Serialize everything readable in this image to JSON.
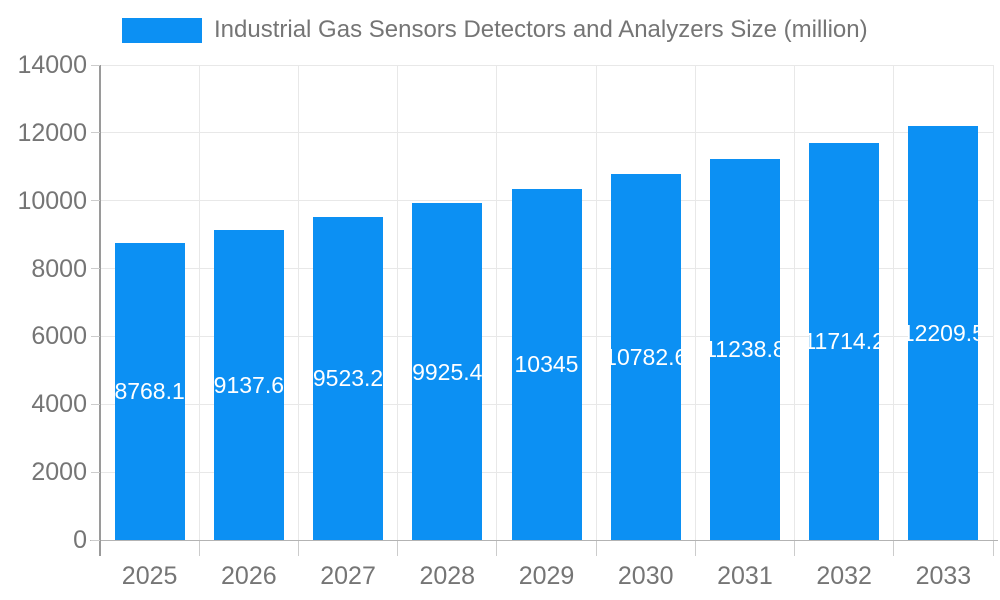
{
  "legend": {
    "label": "Industrial Gas Sensors Detectors and Analyzers Size (million)"
  },
  "chart_data": {
    "type": "bar",
    "title": "Industrial Gas Sensors Detectors and Analyzers Size (million)",
    "categories": [
      "2025",
      "2026",
      "2027",
      "2028",
      "2029",
      "2030",
      "2031",
      "2032",
      "2033"
    ],
    "values": [
      8768.1,
      9137.6,
      9523.2,
      9925.4,
      10345,
      10782.6,
      11238.8,
      11714.2,
      12209.5
    ],
    "bar_labels": [
      "8768.1",
      "9137.6",
      "9523.2",
      "9925.4",
      "10345",
      "10782.6",
      "11238.8",
      "11714.2",
      "12209.5"
    ],
    "xlabel": "",
    "ylabel": "",
    "ylim": [
      0,
      14000
    ],
    "ytick_step": 2000,
    "ytick_labels": [
      "0",
      "2000",
      "4000",
      "6000",
      "8000",
      "10000",
      "12000",
      "14000"
    ],
    "grid": true,
    "legend_position": "top",
    "colors": {
      "bar": "#0C90F3",
      "bar_label_text": "#ffffff",
      "axis_text": "#757575",
      "gridline": "#e8e8e8",
      "axis_line": "#9a9a9a",
      "baseline": "#b3b3b3",
      "tick": "#cccccc",
      "background": "#ffffff"
    }
  }
}
